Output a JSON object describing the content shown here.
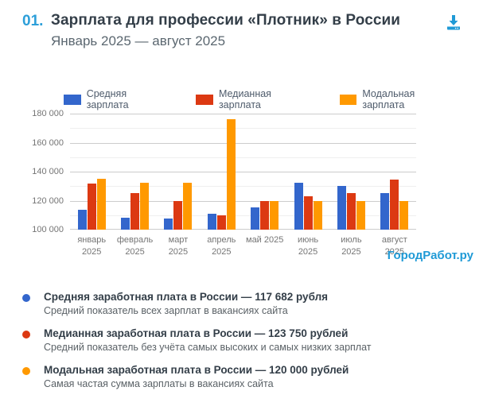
{
  "header": {
    "index": "01.",
    "title": "Зарплата для профессии «Плотник» в России",
    "subtitle": "Январь 2025 — август 2025"
  },
  "colors": {
    "brand_blue": "#1f9ad6",
    "average": "#3366cc",
    "median": "#dc3912",
    "modal": "#ff9900"
  },
  "chart_data": {
    "type": "bar",
    "categories": [
      "январь 2025",
      "февраль 2025",
      "март 2025",
      "апрель 2025",
      "май 2025",
      "июнь 2025",
      "июль 2025",
      "август 2025"
    ],
    "tick_label_lines": [
      [
        "январь",
        "2025"
      ],
      [
        "февраль",
        "2025"
      ],
      [
        "март",
        "2025"
      ],
      [
        "апрель",
        "2025"
      ],
      [
        "май 2025"
      ],
      [
        "июнь",
        "2025"
      ],
      [
        "июль",
        "2025"
      ],
      [
        "август",
        "2025"
      ]
    ],
    "series": [
      {
        "name": "Средняя зарплата",
        "color": "#3366cc",
        "values": [
          113500,
          108000,
          107500,
          111000,
          115500,
          132500,
          130000,
          125000
        ]
      },
      {
        "name": "Медианная зарплата",
        "color": "#dc3912",
        "values": [
          132000,
          125000,
          120000,
          110000,
          120000,
          123000,
          125000,
          134500
        ]
      },
      {
        "name": "Модальная зарплата",
        "color": "#ff9900",
        "values": [
          135000,
          132500,
          132500,
          176000,
          120000,
          120000,
          120000,
          120000
        ]
      }
    ],
    "ylim": [
      100000,
      180000
    ],
    "y_major_step": 20000,
    "y_minor_step": 10000,
    "y_tick_labels": [
      "100 000",
      "120 000",
      "140 000",
      "160 000",
      "180 000"
    ],
    "grid": true,
    "legend_position": "top",
    "title": "Зарплата для профессии «Плотник» в России",
    "xlabel": "",
    "ylabel": ""
  },
  "watermark": "ГородРабот.ру",
  "summary": [
    {
      "title": "Средняя заработная плата в России — 117 682 рубля",
      "desc": "Средний показатель всех зарплат в вакансиях сайта"
    },
    {
      "title": "Медианная заработная плата в России — 123 750 рублей",
      "desc": "Средний показатель без учёта самых высоких и самых низких зарплат"
    },
    {
      "title": "Модальная заработная плата в России — 120 000 рублей",
      "desc": "Самая частая сумма зарплаты в вакансиях сайта"
    }
  ]
}
